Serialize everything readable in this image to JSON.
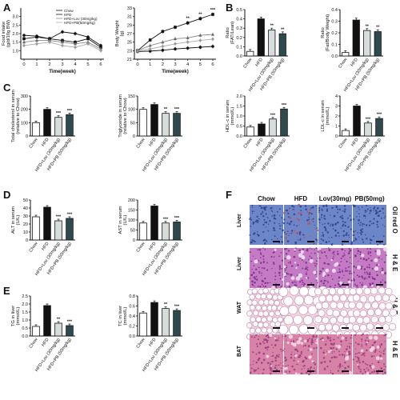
{
  "panels": {
    "A": "A",
    "B": "B",
    "C": "C",
    "D": "D",
    "E": "E",
    "F": "F"
  },
  "groups": [
    "Chow",
    "HFD",
    "HFD+Lov (30mg/kg)",
    "HFD+PB (50mg/kg)"
  ],
  "colors": {
    "chow": "#ffffff",
    "hfd": "#111111",
    "lov": "#d7dddd",
    "pb": "#2f4a4f"
  },
  "chart_data": [
    {
      "id": "A1",
      "type": "line",
      "xlabel": "Time(week)",
      "ylabel": "Food intake (g/d/10g BW)",
      "x": [
        0,
        1,
        2,
        3,
        4,
        5,
        6
      ],
      "ylim": [
        0.5,
        3.5
      ],
      "yticks": [
        1.0,
        1.5,
        2.0,
        2.5,
        3.0
      ],
      "legend": [
        "Chow",
        "HFD",
        "HFD+Lov (30mg/kg)",
        "HFD+PB(50mg/kg)"
      ],
      "series": [
        {
          "name": "Chow",
          "values": [
            1.9,
            1.85,
            1.7,
            2.1,
            2.0,
            1.8,
            1.3
          ]
        },
        {
          "name": "HFD",
          "values": [
            1.7,
            1.8,
            1.7,
            1.6,
            1.5,
            1.7,
            1.2
          ]
        },
        {
          "name": "HFD+Lov (30mg/kg)",
          "values": [
            1.5,
            1.6,
            1.6,
            1.5,
            1.4,
            1.5,
            1.1
          ]
        },
        {
          "name": "HFD+PB(50mg/kg)",
          "values": [
            1.3,
            1.4,
            1.5,
            1.3,
            1.2,
            1.4,
            1.0
          ]
        }
      ]
    },
    {
      "id": "A2",
      "type": "line",
      "xlabel": "Time(week)",
      "ylabel": "Body Weight(g)",
      "x": [
        0,
        1,
        2,
        3,
        4,
        5,
        6
      ],
      "ylim": [
        21,
        33
      ],
      "yticks": [
        21,
        23,
        25,
        27,
        29,
        31,
        33
      ],
      "series": [
        {
          "name": "Chow",
          "values": [
            22.8,
            22.9,
            23.1,
            23.4,
            23.6,
            23.8,
            24.0
          ]
        },
        {
          "name": "HFD",
          "values": [
            23.0,
            25.5,
            27.5,
            28.5,
            29.5,
            30.5,
            31.5
          ]
        },
        {
          "name": "HFD+Lov (30mg/kg)",
          "values": [
            23.0,
            24.2,
            25.0,
            25.8,
            26.0,
            26.6,
            26.8
          ]
        },
        {
          "name": "HFD+PB(50mg/kg)",
          "values": [
            22.9,
            23.4,
            24.0,
            24.6,
            25.0,
            25.4,
            25.7
          ]
        }
      ],
      "annotations": [
        "**",
        "**",
        "***"
      ]
    },
    {
      "id": "B1",
      "type": "bar",
      "ylabel": "Ratio (FAT/Lean)",
      "ylim": [
        0,
        0.5
      ],
      "yticks": [
        0.0,
        0.1,
        0.2,
        0.3,
        0.4,
        0.5
      ],
      "values": [
        0.05,
        0.4,
        0.28,
        0.24
      ],
      "stars": [
        "",
        "",
        "**",
        "**"
      ]
    },
    {
      "id": "B2",
      "type": "bar",
      "ylabel": "Ratio (Fat/Body Weight)",
      "ylim": [
        0,
        0.4
      ],
      "yticks": [
        0.0,
        0.1,
        0.2,
        0.3,
        0.4
      ],
      "values": [
        0.03,
        0.31,
        0.22,
        0.21
      ],
      "stars": [
        "",
        "",
        "**",
        "**"
      ]
    },
    {
      "id": "C1",
      "type": "bar",
      "ylabel": "Total cholesterol in serum (relative to Chow)",
      "ylim": [
        0,
        300
      ],
      "yticks": [
        0,
        100,
        200,
        300
      ],
      "values": [
        100,
        200,
        140,
        160
      ],
      "stars": [
        "",
        "",
        "***",
        "***"
      ]
    },
    {
      "id": "C2",
      "type": "bar",
      "ylabel": "Triglyceride in serum (relative to Chow)",
      "ylim": [
        0,
        150
      ],
      "yticks": [
        0,
        50,
        100,
        150
      ],
      "values": [
        100,
        118,
        85,
        85
      ],
      "stars": [
        "",
        "",
        "**",
        "***"
      ]
    },
    {
      "id": "C3",
      "type": "bar",
      "ylabel": "HDL-c in serum (mmol/L)",
      "ylim": [
        0,
        2.0
      ],
      "yticks": [
        0.0,
        0.5,
        1.0,
        1.5,
        2.0
      ],
      "values": [
        0.45,
        0.6,
        0.85,
        1.35
      ],
      "stars": [
        "",
        "",
        "***",
        "***"
      ]
    },
    {
      "id": "C4",
      "type": "bar",
      "ylabel": "LDL-c in serum (mmol/L)",
      "ylim": [
        0,
        4
      ],
      "yticks": [
        0,
        1,
        2,
        3,
        4
      ],
      "values": [
        0.55,
        3.0,
        1.3,
        1.75
      ],
      "stars": [
        "",
        "",
        "***",
        "***"
      ]
    },
    {
      "id": "D1",
      "type": "bar",
      "ylabel": "ALT in serum (U/L)",
      "ylim": [
        0,
        50
      ],
      "yticks": [
        0,
        10,
        20,
        30,
        40,
        50
      ],
      "values": [
        29,
        41,
        24,
        27
      ],
      "stars": [
        "",
        "",
        "***",
        "***"
      ]
    },
    {
      "id": "D2",
      "type": "bar",
      "ylabel": "AST in serum (U/L)",
      "ylim": [
        0,
        200
      ],
      "yticks": [
        0,
        50,
        100,
        150,
        200
      ],
      "values": [
        85,
        170,
        85,
        90
      ],
      "stars": [
        "",
        "",
        "***",
        "***"
      ]
    },
    {
      "id": "E1",
      "type": "bar",
      "ylabel": "TG in liver(mmol/L)",
      "ylim": [
        0,
        2.5
      ],
      "yticks": [
        0.0,
        0.5,
        1.0,
        1.5,
        2.0,
        2.5
      ],
      "values": [
        0.6,
        1.9,
        0.8,
        0.65
      ],
      "stars": [
        "",
        "",
        "**",
        "***"
      ]
    },
    {
      "id": "E2",
      "type": "bar",
      "ylabel": "TC in liver(mmol/L)",
      "ylim": [
        0,
        0.8
      ],
      "yticks": [
        0.0,
        0.2,
        0.4,
        0.6,
        0.8
      ],
      "values": [
        0.46,
        0.67,
        0.55,
        0.51
      ],
      "stars": [
        "",
        "",
        "**",
        "***"
      ]
    }
  ],
  "histology": {
    "columns": [
      "Chow",
      "HFD",
      "Lov(30mg)",
      "PB(50mg)"
    ],
    "rows": [
      {
        "tissue": "Liver",
        "stain": "Oil red O"
      },
      {
        "tissue": "Liver",
        "stain": "H & E"
      },
      {
        "tissue": "WAT",
        "stain": "H & E"
      },
      {
        "tissue": "BAT",
        "stain": "H & E"
      }
    ]
  }
}
